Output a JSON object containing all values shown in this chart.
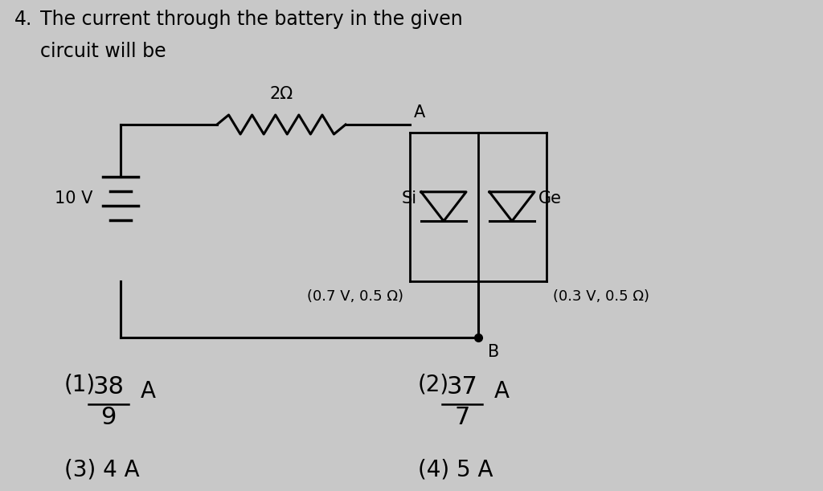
{
  "background_color": "#c8c8c8",
  "title_number": "4.",
  "title_text_line1": "The current through the battery in the given",
  "title_text_line2": "circuit will be",
  "battery_label": "10 V",
  "resistor_label": "2Ω",
  "node_A": "A",
  "node_B": "B",
  "si_label": "Si",
  "ge_label": "Ge",
  "si_params": "(0.7 V, 0.5 Ω)",
  "ge_params": "(0.3 V, 0.5 Ω)",
  "options": [
    {
      "num": "(1)",
      "frac_num": "38",
      "frac_den": "9",
      "unit": "A"
    },
    {
      "num": "(2)",
      "frac_num": "37",
      "frac_den": "7",
      "unit": "A"
    },
    {
      "num": "(3)",
      "value": "4 A"
    },
    {
      "num": "(4)",
      "value": "5 A"
    }
  ],
  "font_size_title": 17,
  "font_size_circuit": 14,
  "font_size_options": 19
}
